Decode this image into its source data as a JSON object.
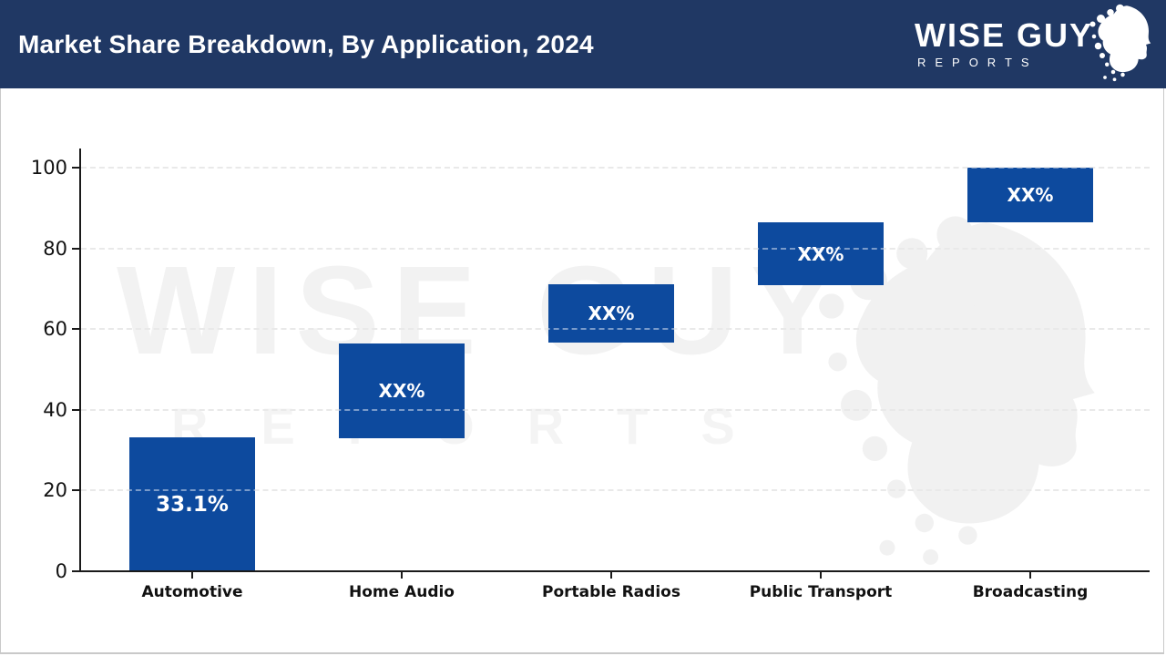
{
  "header": {
    "title": "Market Share Breakdown, By Application, 2024",
    "logo": {
      "line1": "WISE GUY",
      "line2": "REPORTS"
    },
    "bg_color": "#203864"
  },
  "watermark": {
    "line1": "WISE GUY",
    "line2": "REPORTS"
  },
  "chart_data": {
    "type": "bar",
    "variant": "waterfall",
    "title": "Market Share Breakdown, By Application, 2024",
    "categories": [
      "Automotive",
      "Home Audio",
      "Portable Radios",
      "Public Transport",
      "Broadcasting"
    ],
    "bar_segments": [
      {
        "category": "Automotive",
        "start": 0,
        "end": 33.1,
        "label": "33.1%"
      },
      {
        "category": "Home Audio",
        "start": 33.1,
        "end": 56.5,
        "label": "XX%"
      },
      {
        "category": "Portable Radios",
        "start": 56.5,
        "end": 71,
        "label": "XX%"
      },
      {
        "category": "Public Transport",
        "start": 71,
        "end": 86.5,
        "label": "XX%"
      },
      {
        "category": "Broadcasting",
        "start": 86.5,
        "end": 100,
        "label": "XX%"
      }
    ],
    "y_ticks": [
      0,
      20,
      40,
      60,
      80,
      100
    ],
    "ylim": [
      0,
      105
    ],
    "xlabel": "",
    "ylabel": "",
    "grid": true,
    "legend_position": "none",
    "bar_color": "#0d4a9e",
    "bar_label_color": "#ffffff",
    "grid_color": "#d8d8d8",
    "axis_color": "#1a1a1a"
  }
}
